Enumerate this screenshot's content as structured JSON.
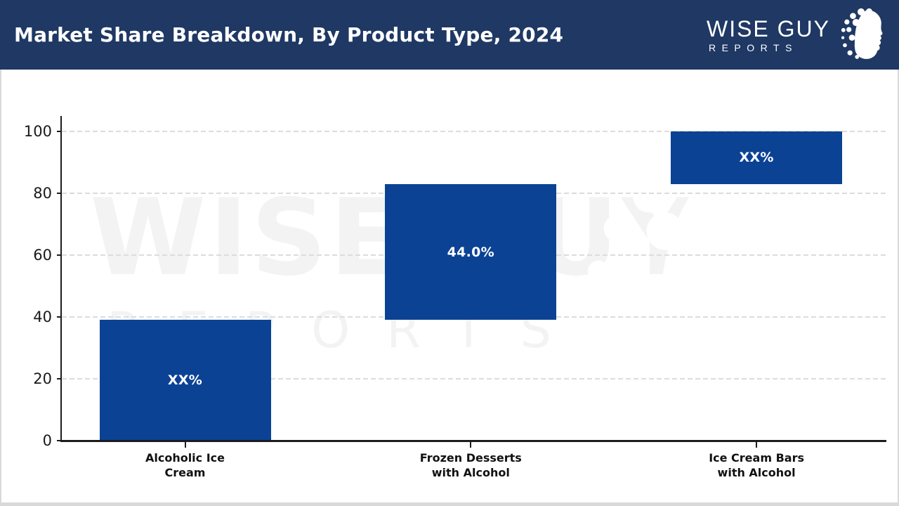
{
  "header": {
    "title": "Market Share Breakdown, By Product Type, 2024",
    "logo": {
      "brand": "WISE GUY",
      "tagline": "REPORTS",
      "icon": "dotted-face-profile-icon"
    }
  },
  "watermark": {
    "brand": "WISE GUY",
    "tagline": "REPORTS",
    "icon": "dotted-face-profile-icon"
  },
  "chart_data": {
    "type": "bar",
    "subtype": "floating-waterfall",
    "title": "Market Share Breakdown, By Product Type, 2024",
    "xlabel": "",
    "ylabel": "",
    "categories": [
      "Alcoholic Ice\nCream",
      "Frozen Desserts\nwith Alcohol",
      "Ice Cream Bars\nwith Alcohol"
    ],
    "series": [
      {
        "name": "Market share (%)",
        "segments": [
          {
            "category": "Alcoholic Ice Cream",
            "start": 0,
            "end": 39,
            "value": 39,
            "label": "XX%"
          },
          {
            "category": "Frozen Desserts with Alcohol",
            "start": 39,
            "end": 83,
            "value": 44,
            "label": "44.0%"
          },
          {
            "category": "Ice Cream Bars with Alcohol",
            "start": 83,
            "end": 100,
            "value": 17,
            "label": "XX%"
          }
        ]
      }
    ],
    "ylim": [
      0,
      100
    ],
    "yticks": [
      0,
      20,
      40,
      60,
      80,
      100
    ],
    "grid": {
      "horizontal": true,
      "style": "dashed"
    },
    "legend": {
      "shown": false
    },
    "colors": {
      "bar": "#0B4294",
      "bar_label": "#ffffff",
      "axis": "#1c1c1c",
      "grid": "#dcdcdc"
    }
  },
  "colors": {
    "header_bg": "#1F3864",
    "page_bg": "#ffffff",
    "frame": "#d9d9d9",
    "watermark": "#f3f3f3"
  }
}
